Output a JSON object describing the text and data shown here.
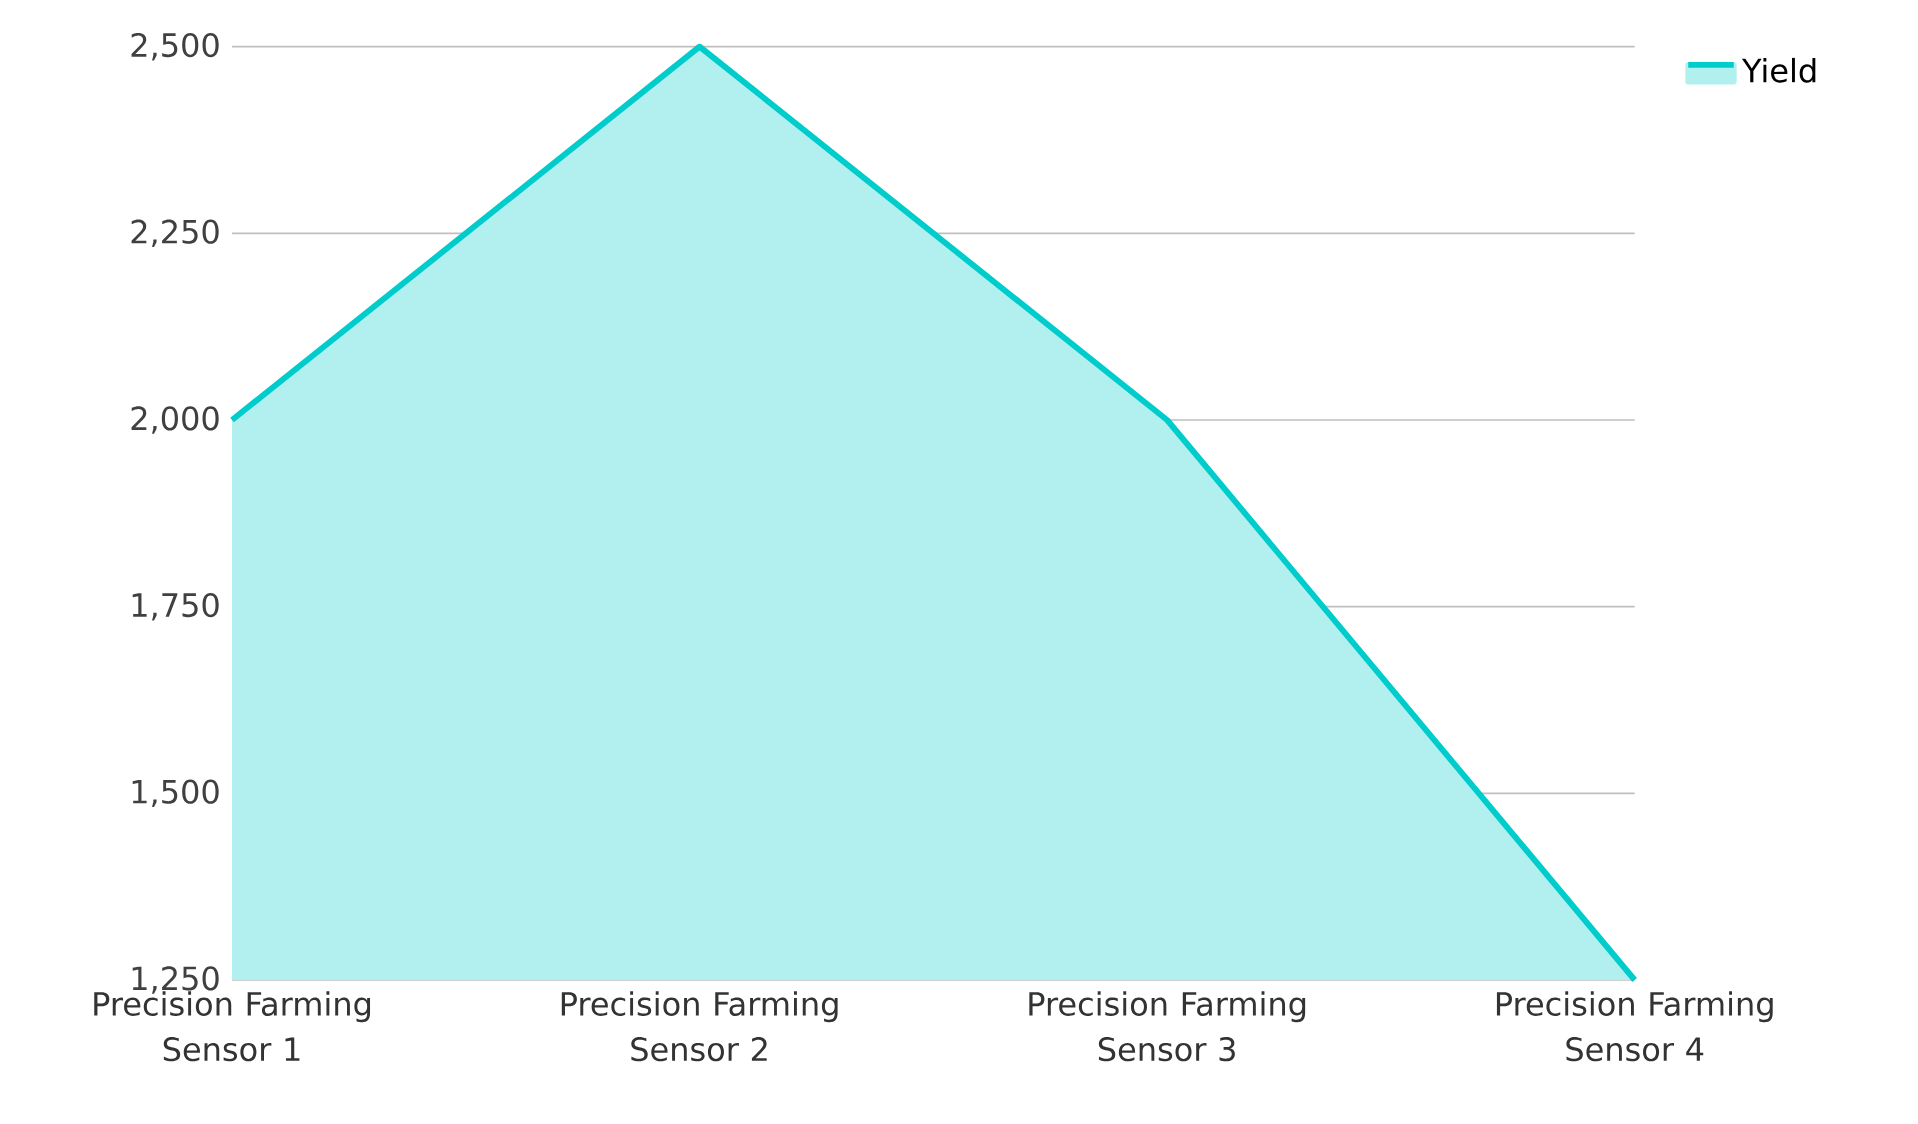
{
  "chart_data": {
    "type": "area",
    "categories": [
      "Precision Farming Sensor 1",
      "Precision Farming Sensor 2",
      "Precision Farming Sensor 3",
      "Precision Farming Sensor 4"
    ],
    "series": [
      {
        "name": "Yield",
        "color": "#00cccc",
        "values": [
          2000,
          2500,
          2000,
          1250
        ]
      }
    ],
    "ylim": [
      1250,
      2500
    ],
    "yticks": [
      {
        "value": 1250,
        "label": "1,250"
      },
      {
        "value": 1500,
        "label": "1,500"
      },
      {
        "value": 1750,
        "label": "1,750"
      },
      {
        "value": 2000,
        "label": "2,000"
      },
      {
        "value": 2250,
        "label": "2,250"
      },
      {
        "value": 2500,
        "label": "2,500"
      }
    ],
    "grid": "y",
    "legend": "top right"
  }
}
